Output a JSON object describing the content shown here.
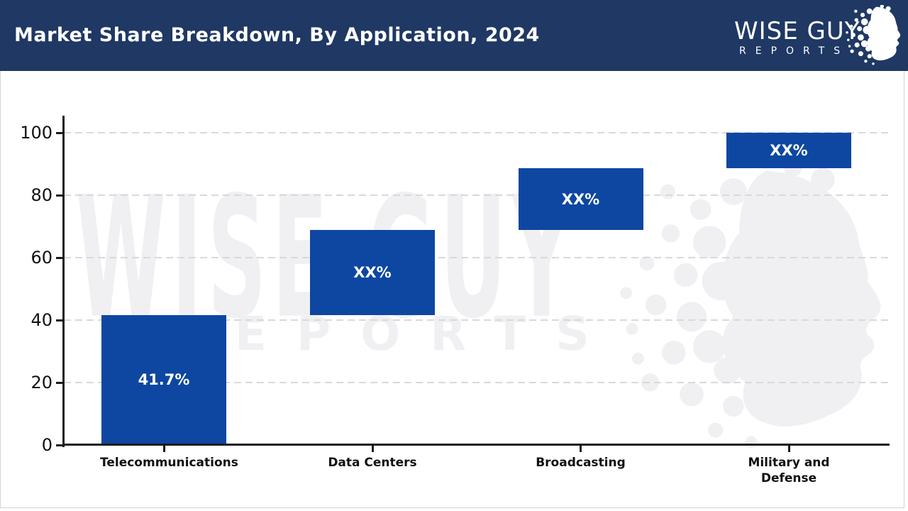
{
  "header": {
    "title": "Market Share Breakdown, By Application, 2024",
    "bg_color": "#1f3864",
    "logo": {
      "wordmark": "WISE GUY",
      "subtext": "REPORTS"
    }
  },
  "watermark": {
    "line1": "WISE GUY",
    "line2": "REPORTS"
  },
  "chart_data": {
    "type": "bar",
    "subtype": "floating-waterfall",
    "title": "Market Share Breakdown, By Application, 2024",
    "categories": [
      "Telecommunications",
      "Data Centers",
      "Broadcasting",
      "Military and Defense"
    ],
    "segments": [
      {
        "category": "Telecommunications",
        "start": 0,
        "end": 41.7,
        "label": "41.7%"
      },
      {
        "category": "Data Centers",
        "start": 41.7,
        "end": 68.8,
        "label": "XX%"
      },
      {
        "category": "Broadcasting",
        "start": 68.8,
        "end": 88.6,
        "label": "XX%"
      },
      {
        "category": "Military and Defense",
        "start": 88.6,
        "end": 100,
        "label": "XX%"
      }
    ],
    "ylim": [
      0,
      100
    ],
    "yticks": [
      0,
      20,
      40,
      60,
      80,
      100
    ],
    "grid": {
      "horizontal": true,
      "style": "dashed",
      "color": "#d9d9d9"
    },
    "bar_color": "#0d47a1",
    "bar_label_color": "#ffffff",
    "axis_color": "#1a1a1a",
    "legend": "none"
  }
}
